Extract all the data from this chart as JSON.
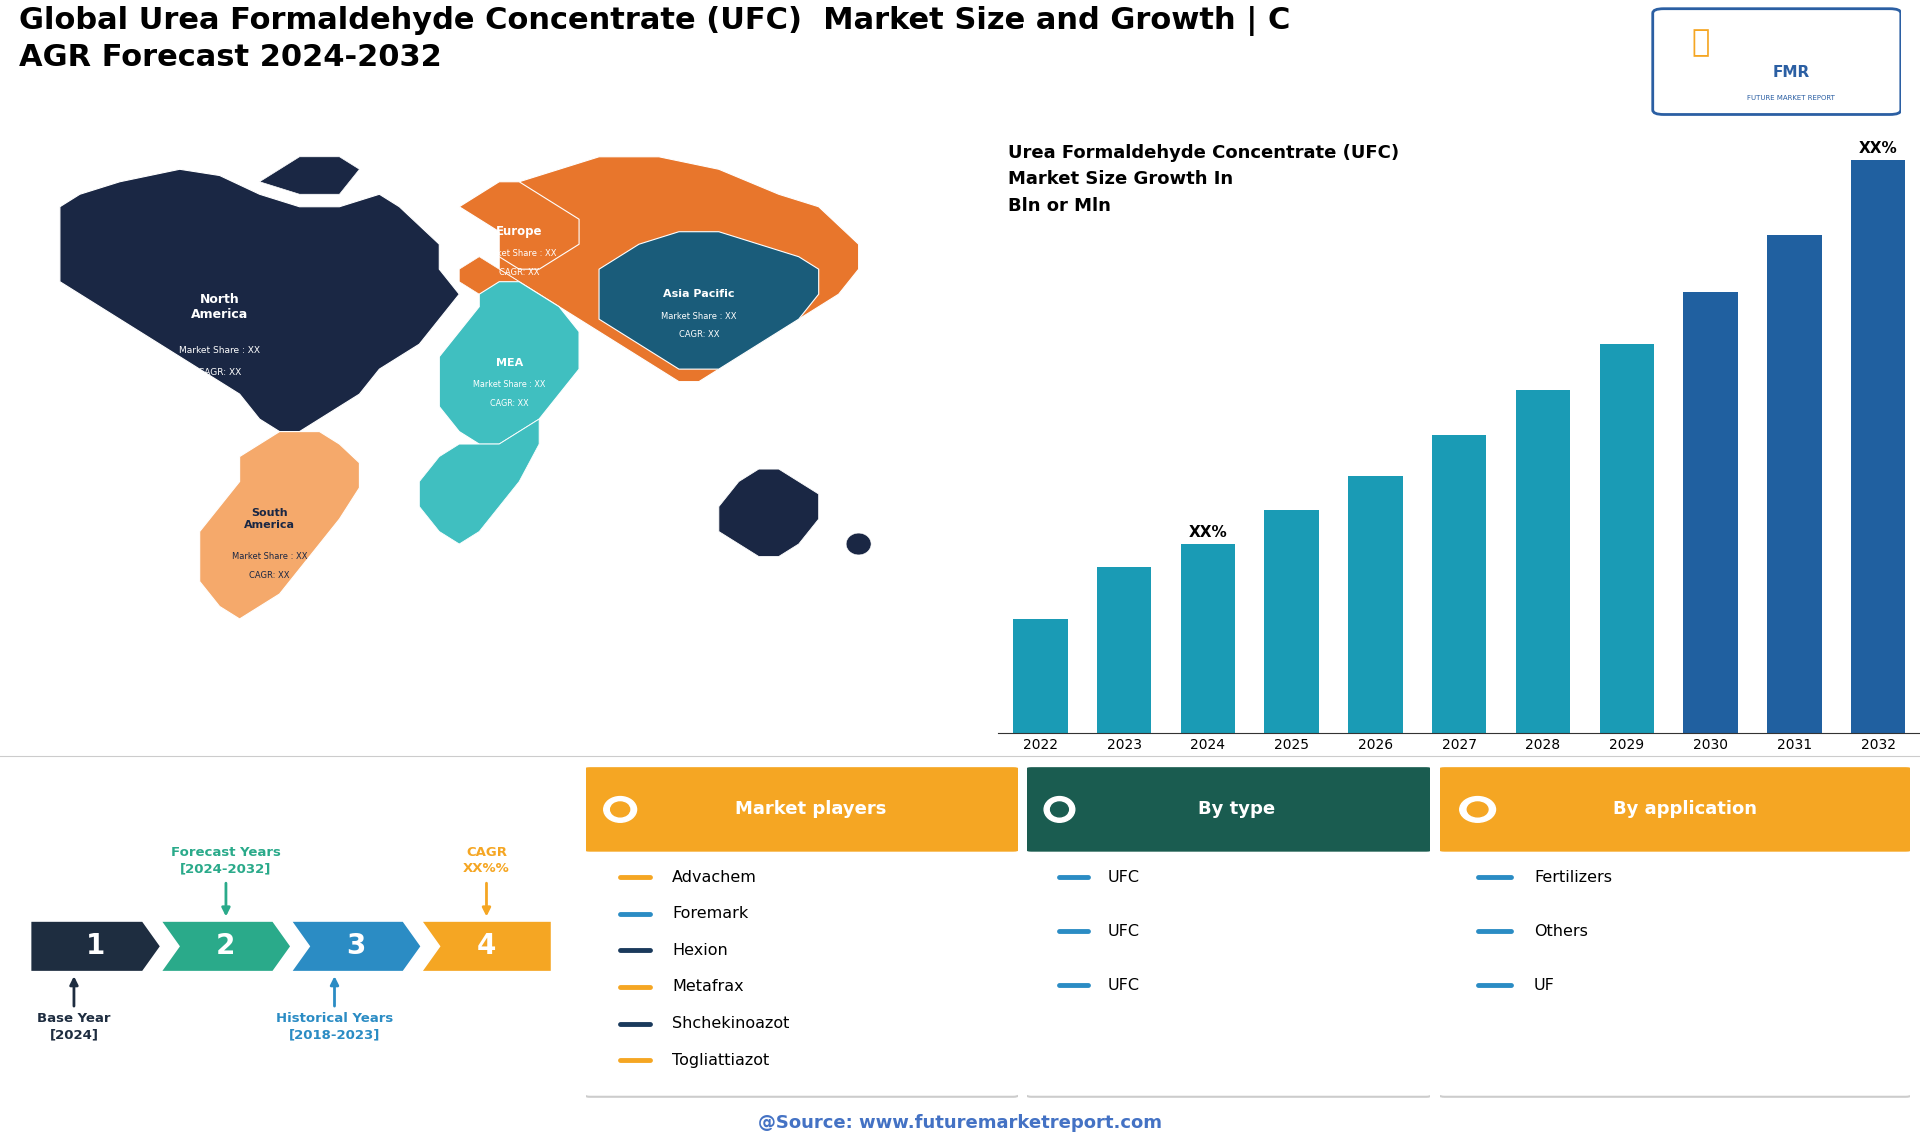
{
  "title_line1": "Global Urea Formaldehyde Concentrate (UFC)  Market Size and Growth | C",
  "title_line2": "AGR Forecast 2024-2032",
  "title_fontsize": 22,
  "title_color": "#000000",
  "background_color": "#ffffff",
  "bar_years": [
    "2022",
    "2023",
    "2024",
    "2025",
    "2026",
    "2027",
    "2028",
    "2029",
    "2030",
    "2031",
    "2032"
  ],
  "bar_values": [
    1.0,
    1.45,
    1.65,
    1.95,
    2.25,
    2.6,
    3.0,
    3.4,
    3.85,
    4.35,
    5.0
  ],
  "bar_colors": [
    "#1a9bb5",
    "#1a9bb5",
    "#1a9bb5",
    "#1a9bb5",
    "#1a9bb5",
    "#1a9bb5",
    "#1a9bb5",
    "#1a9bb5",
    "#2060a0",
    "#2060a0",
    "#2060a0"
  ],
  "bar_label_xx_indices": [
    2,
    10
  ],
  "bar_chart_title": "Urea Formaldehyde Concentrate (UFC)\nMarket Size Growth In\nBln or Mln",
  "bar_chart_title_fontsize": 13,
  "source_text": "@Source: www.futuremarketreport.com",
  "source_color": "#4472c4",
  "market_players_header_color": "#f5a623",
  "market_players_header_text": "Market players",
  "market_players": [
    {
      "name": "Advachem",
      "color": "#f5a623"
    },
    {
      "name": "Foremark",
      "color": "#2b8cc4"
    },
    {
      "name": "Hexion",
      "color": "#1a3a5c"
    },
    {
      "name": "Metafrax",
      "color": "#f5a623"
    },
    {
      "name": "Shchekinoazot",
      "color": "#1a3a5c"
    },
    {
      "name": "Togliattiazot",
      "color": "#f5a623"
    }
  ],
  "by_type_header_color": "#1a5c50",
  "by_type_header_text": "By type",
  "by_type_items": [
    {
      "name": "UFC",
      "color": "#2b8cc4"
    },
    {
      "name": "UFC",
      "color": "#2b8cc4"
    },
    {
      "name": "UFC",
      "color": "#2b8cc4"
    }
  ],
  "by_app_header_color": "#f5a623",
  "by_app_header_text": "By application",
  "by_app_items": [
    {
      "name": "Fertilizers",
      "color": "#2b8cc4"
    },
    {
      "name": "Others",
      "color": "#2b8cc4"
    },
    {
      "name": "UF",
      "color": "#2b8cc4"
    }
  ],
  "seg_colors": [
    "#1e2d40",
    "#2aaa8a",
    "#2b8cc4",
    "#f5a623"
  ],
  "seg_nums": [
    "1",
    "2",
    "3",
    "4"
  ],
  "seg_labels_top": [
    "",
    "Forecast Years\n[2024-2032]",
    "",
    "CAGR\nXX%%"
  ],
  "seg_labels_bottom": [
    "Base Year\n[2024]",
    "",
    "Historical Years\n[2018-2023]",
    ""
  ],
  "seg_label_colors_top": [
    "#1e2d40",
    "#2aaa8a",
    "#2b8cc4",
    "#f5a623"
  ],
  "seg_label_colors_bottom": [
    "#1e2d40",
    "#2aaa8a",
    "#2b8cc4",
    "#f5a623"
  ]
}
